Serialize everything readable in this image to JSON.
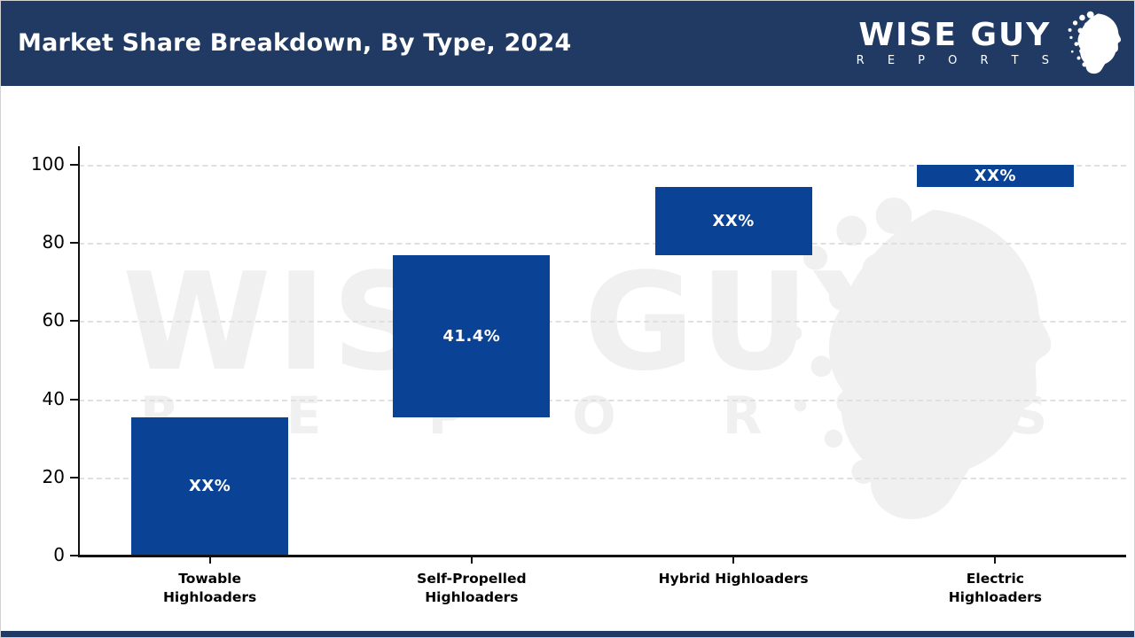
{
  "header": {
    "title": "Market Share Breakdown, By Type, 2024",
    "logo": {
      "line1": "WISE GUY",
      "line2": "R E P O R T S"
    }
  },
  "watermark": {
    "line1": "WISE GUY",
    "line2": "R E P O R T S"
  },
  "colors": {
    "header_bg": "#213A63",
    "footer_bg": "#213A63",
    "bar": "#0A4296",
    "bar_label": "#FFFFFF",
    "axis": "#111111",
    "grid": "#E0E0E0",
    "watermark": "#F0F0F0",
    "text": "#000000"
  },
  "chart_data": {
    "type": "bar",
    "subtype": "waterfall",
    "title": "Market Share Breakdown, By Type, 2024",
    "xlabel": "",
    "ylabel": "",
    "ylim": [
      0,
      100
    ],
    "yticks": [
      0,
      20,
      40,
      60,
      80,
      100
    ],
    "grid": "horizontal-dashed",
    "legend": "none",
    "categories": [
      "Towable Highloaders",
      "Self-Propelled Highloaders",
      "Hybrid Highloaders",
      "Electric Highloaders"
    ],
    "category_lines": [
      [
        "Towable",
        "Highloaders"
      ],
      [
        "Self-Propelled",
        "Highloaders"
      ],
      [
        "Hybrid Highloaders"
      ],
      [
        "Electric",
        "Highloaders"
      ]
    ],
    "values": [
      35.4,
      41.4,
      17.5,
      5.7
    ],
    "cumulative_start": [
      0,
      35.4,
      76.8,
      94.3
    ],
    "cumulative_end": [
      35.4,
      76.8,
      94.3,
      100
    ],
    "bar_labels": [
      "XX%",
      "41.4%",
      "XX%",
      "XX%"
    ]
  }
}
